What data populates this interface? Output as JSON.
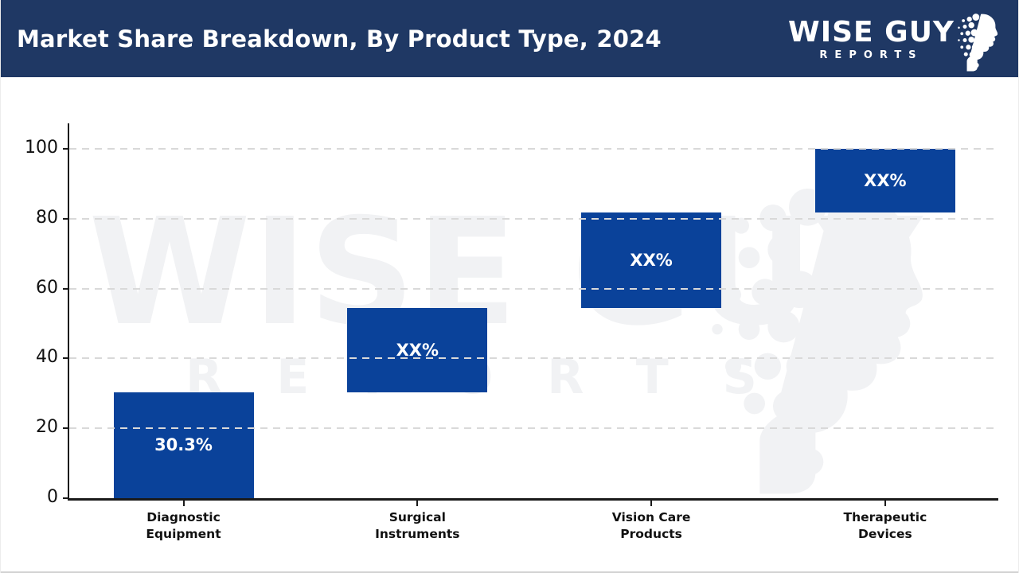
{
  "header": {
    "title": "Market Share Breakdown, By Product Type, 2024",
    "logo_line1": "WISE GUY",
    "logo_line2": "REPORTS"
  },
  "watermark": {
    "line1": "WISE GUY",
    "line2": "REPORTS"
  },
  "colors": {
    "header_bg": "#1f3864",
    "bar_blue": "#0a429a",
    "gridline": "#d9d9d9",
    "axis": "#1a1a1a",
    "watermark": "#f1f2f4"
  },
  "chart_data": {
    "type": "bar",
    "subtype": "waterfall",
    "title": "Market Share Breakdown, By Product Type, 2024",
    "xlabel": "",
    "ylabel": "",
    "ylim": [
      0,
      100
    ],
    "yticks": [
      0,
      20,
      40,
      60,
      80,
      100
    ],
    "grid": "dashed-horizontal",
    "legend": "none",
    "categories": [
      "Diagnostic Equipment",
      "Surgical Instruments",
      "Vision Care Products",
      "Therapeutic Devices"
    ],
    "segments": [
      {
        "category_lines": [
          "Diagnostic",
          "Equipment"
        ],
        "start": 0,
        "end": 30.3,
        "label": "30.3%"
      },
      {
        "category_lines": [
          "Surgical",
          "Instruments"
        ],
        "start": 30.3,
        "end": 54.5,
        "label": "XX%"
      },
      {
        "category_lines": [
          "Vision Care",
          "Products"
        ],
        "start": 54.5,
        "end": 81.8,
        "label": "XX%"
      },
      {
        "category_lines": [
          "Therapeutic",
          "Devices"
        ],
        "start": 81.8,
        "end": 100,
        "label": "XX%"
      }
    ]
  }
}
